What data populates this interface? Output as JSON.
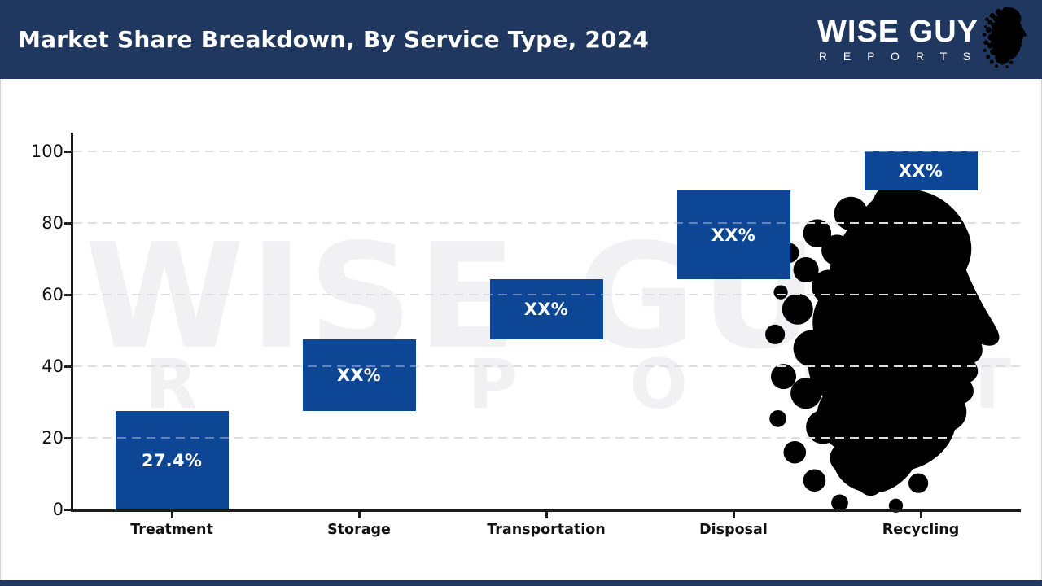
{
  "header": {
    "title": "Market Share Breakdown, By Service Type, 2024",
    "logo": {
      "line1": "WISE GUY",
      "line2": "R E P O R T S"
    }
  },
  "watermark": {
    "line1": "WISE GUY",
    "line2": "R E P O R T S"
  },
  "colors": {
    "header_bg": "#20385f",
    "bar": "#0d4694",
    "bar_label_text": "#ffffff",
    "gridline": "#dcdcdc",
    "axis": "#1c1c1c",
    "watermark_text": "#f1f1f4"
  },
  "chart_data": {
    "type": "bar",
    "subtype": "waterfall",
    "title": "Market Share Breakdown, By Service Type, 2024",
    "categories": [
      "Treatment",
      "Storage",
      "Transportation",
      "Disposal",
      "Recycling"
    ],
    "bars": [
      {
        "category": "Treatment",
        "start": 0,
        "end": 27.4,
        "label": "27.4%"
      },
      {
        "category": "Storage",
        "start": 27.4,
        "end": 47.5,
        "label": "XX%"
      },
      {
        "category": "Transportation",
        "start": 47.5,
        "end": 64.3,
        "label": "XX%"
      },
      {
        "category": "Disposal",
        "start": 64.3,
        "end": 89.1,
        "label": "XX%"
      },
      {
        "category": "Recycling",
        "start": 89.1,
        "end": 100,
        "label": "XX%"
      }
    ],
    "xlabel": "",
    "ylabel": "",
    "ylim": [
      0,
      100
    ],
    "yticks": [
      0,
      20,
      40,
      60,
      80,
      100
    ],
    "grid": "horizontal-dashed",
    "legend": "none"
  }
}
